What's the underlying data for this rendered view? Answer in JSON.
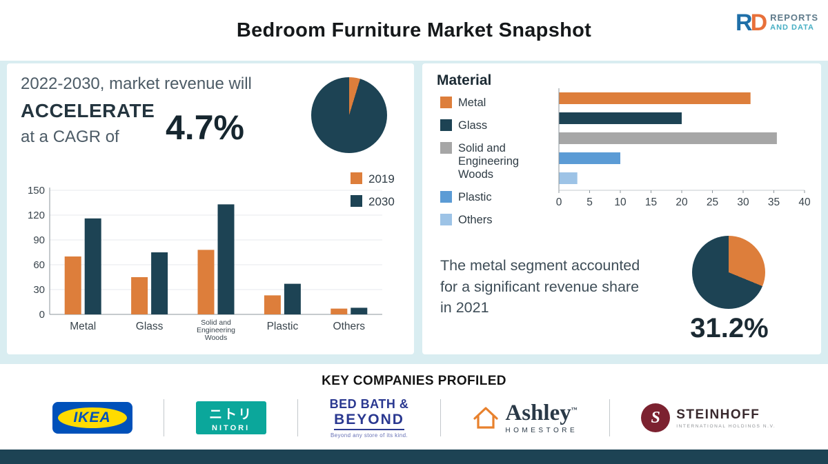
{
  "header": {
    "title": "Bedroom Furniture Market Snapshot",
    "logo": {
      "abbr_r": "R",
      "abbr_d": "D",
      "name_top": "REPORTS",
      "name_bottom": "AND DATA"
    }
  },
  "left_panel": {
    "intro_line1": "2022-2030, market revenue will",
    "intro_accelerate": "ACCELERATE",
    "intro_line2": "at a CAGR of",
    "cagr_value": "4.7%"
  },
  "right_panel": {
    "material_title": "Material",
    "note": "The metal segment accounted for a significant revenue share in 2021",
    "metal_share": "31.2%"
  },
  "companies_section": {
    "title": "KEY COMPANIES PROFILED",
    "companies": [
      {
        "name": "IKEA"
      },
      {
        "name": "NITORI",
        "jp": "ニトリ"
      },
      {
        "name_line1": "BED BATH &",
        "name_line2": "BEYOND",
        "tagline": "Beyond any store of its kind."
      },
      {
        "name": "Ashley",
        "tm": "™",
        "sub": "HOMESTORE"
      },
      {
        "name": "STEINHOFF",
        "initial": "S",
        "sub": "INTERNATIONAL HOLDINGS N.V."
      }
    ]
  },
  "colors": {
    "background": "#D9EDF1",
    "card": "#FFFFFF",
    "accent_orange": "#DD7E3B",
    "accent_dark_teal": "#1D4354",
    "accent_gray": "#A6A6A6",
    "accent_blue": "#5B9BD5",
    "accent_light_blue": "#9DC3E6",
    "footer": "#1D4354"
  },
  "chart_data": [
    {
      "type": "pie",
      "title": "CAGR highlight pie",
      "labels": [
        "CAGR 4.7%",
        "Remainder"
      ],
      "values": [
        4.7,
        95.3
      ],
      "colors": [
        "#DD7E3B",
        "#1D4354"
      ]
    },
    {
      "type": "bar",
      "title": "Market revenue by material, 2019 vs 2030",
      "categories": [
        "Metal",
        "Glass",
        "Solid and Engineering Woods",
        "Plastic",
        "Others"
      ],
      "series": [
        {
          "name": "2019",
          "color": "#DD7E3B",
          "values": [
            70,
            45,
            78,
            23,
            7
          ]
        },
        {
          "name": "2030",
          "color": "#1D4354",
          "values": [
            116,
            75,
            133,
            37,
            8
          ]
        }
      ],
      "ylim": [
        0,
        150
      ],
      "yticks": [
        0,
        30,
        60,
        90,
        120,
        150
      ],
      "grid": true,
      "legend_position": "upper right"
    },
    {
      "type": "bar",
      "orientation": "horizontal",
      "title": "Material",
      "categories": [
        "Metal",
        "Glass",
        "Solid and Engineering Woods",
        "Plastic",
        "Others"
      ],
      "values": [
        31.2,
        20,
        35.5,
        10,
        3
      ],
      "colors": [
        "#DD7E3B",
        "#1D4354",
        "#A6A6A6",
        "#5B9BD5",
        "#9DC3E6"
      ],
      "xlim": [
        0,
        40
      ],
      "xticks": [
        0,
        5,
        10,
        15,
        20,
        25,
        30,
        35,
        40
      ],
      "grid": false,
      "legend_position": "left"
    },
    {
      "type": "pie",
      "title": "Metal segment revenue share, 2021",
      "labels": [
        "Metal",
        "Rest of market"
      ],
      "values": [
        31.2,
        68.8
      ],
      "colors": [
        "#DD7E3B",
        "#1D4354"
      ],
      "annotation": "31.2%"
    }
  ]
}
